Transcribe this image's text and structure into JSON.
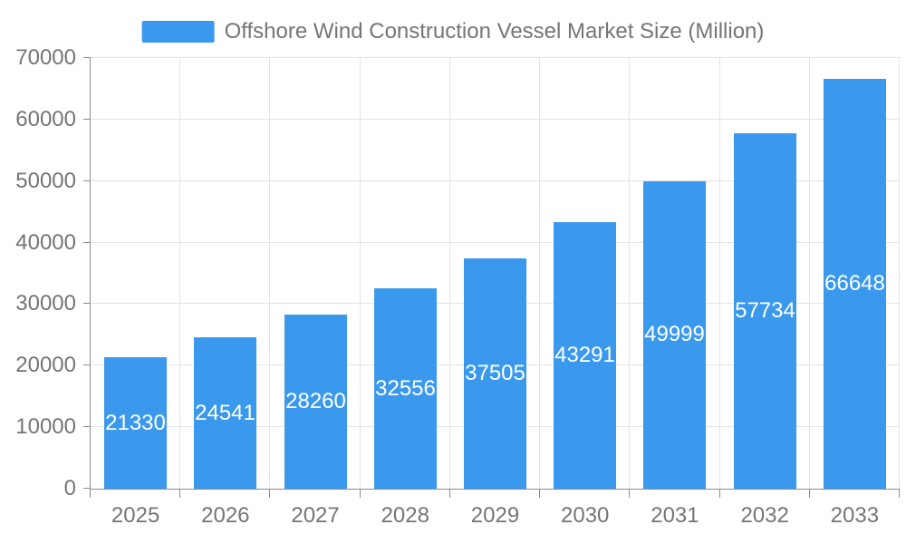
{
  "chart_data": {
    "type": "bar",
    "title": "Offshore Wind Construction Vessel Market Size (Million)",
    "legend_label": "Offshore Wind Construction Vessel Market Size (Million)",
    "legend_position": "top-center",
    "categories": [
      "2025",
      "2026",
      "2027",
      "2028",
      "2029",
      "2030",
      "2031",
      "2032",
      "2033"
    ],
    "series": [
      {
        "name": "Offshore Wind Construction Vessel Market Size (Million)",
        "values": [
          21330,
          24541,
          28260,
          32556,
          37505,
          43291,
          49999,
          57734,
          66648
        ]
      }
    ],
    "xlabel": "",
    "ylabel": "",
    "ylim": [
      0,
      70000
    ],
    "yticks": [
      0,
      10000,
      20000,
      30000,
      40000,
      50000,
      60000,
      70000
    ],
    "grid": "on",
    "bar_labels_visible": true,
    "bar_label_position": "inside-center",
    "colors": {
      "bar": "#3A99EC",
      "bar_label": "#FFFFFF",
      "axis_text": "#757575",
      "axis_line": "#8C8C8C",
      "gridline": "#E4E4E4",
      "background": "#FFFFFF"
    }
  }
}
